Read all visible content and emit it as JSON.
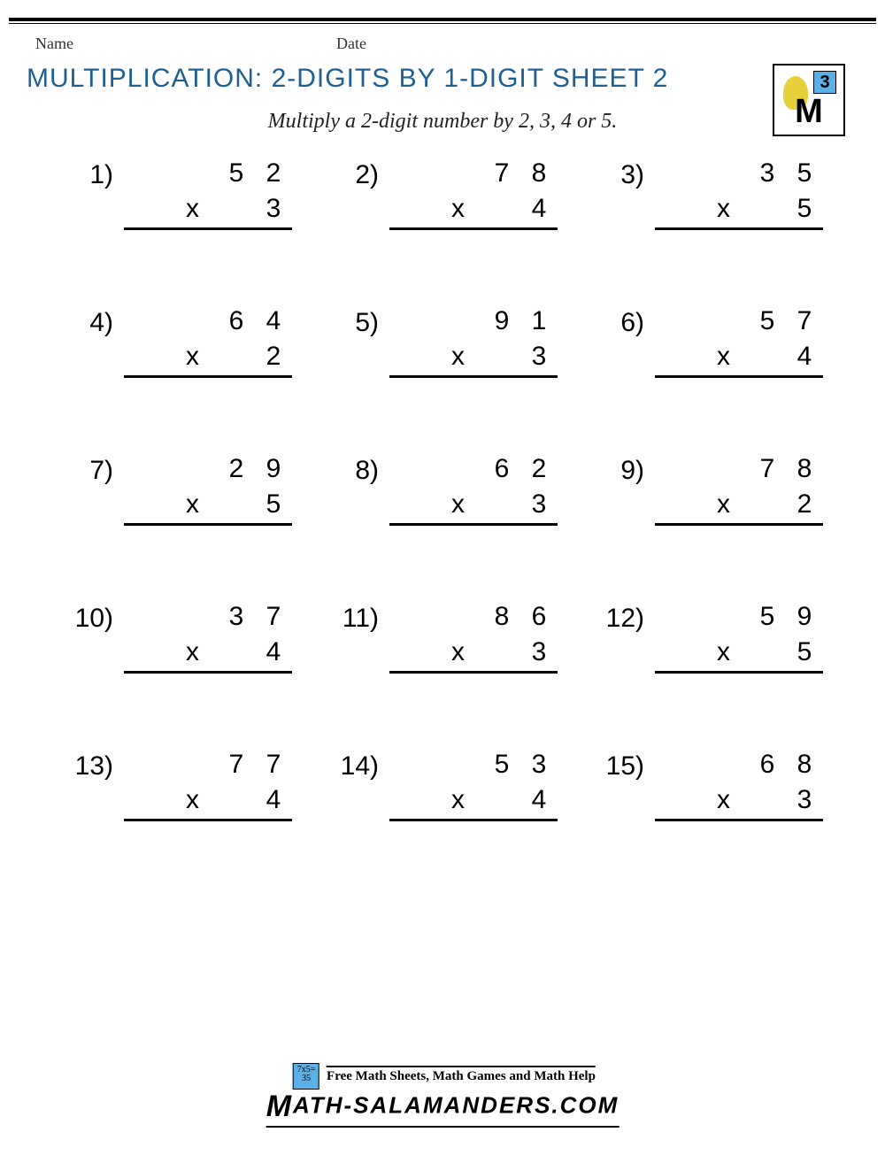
{
  "header": {
    "name_label": "Name",
    "date_label": "Date",
    "badge_grade": "3"
  },
  "title": "MULTIPLICATION: 2-DIGITS BY 1-DIGIT SHEET 2",
  "instruction": "Multiply a 2-digit number by 2, 3, 4 or 5.",
  "multiply_symbol": "x",
  "problems": [
    {
      "n": "1)",
      "d1": "5",
      "d2": "2",
      "m": "3"
    },
    {
      "n": "2)",
      "d1": "7",
      "d2": "8",
      "m": "4"
    },
    {
      "n": "3)",
      "d1": "3",
      "d2": "5",
      "m": "5"
    },
    {
      "n": "4)",
      "d1": "6",
      "d2": "4",
      "m": "2"
    },
    {
      "n": "5)",
      "d1": "9",
      "d2": "1",
      "m": "3"
    },
    {
      "n": "6)",
      "d1": "5",
      "d2": "7",
      "m": "4"
    },
    {
      "n": "7)",
      "d1": "2",
      "d2": "9",
      "m": "5"
    },
    {
      "n": "8)",
      "d1": "6",
      "d2": "2",
      "m": "3"
    },
    {
      "n": "9)",
      "d1": "7",
      "d2": "8",
      "m": "2"
    },
    {
      "n": "10)",
      "d1": "3",
      "d2": "7",
      "m": "4"
    },
    {
      "n": "11)",
      "d1": "8",
      "d2": "6",
      "m": "3"
    },
    {
      "n": "12)",
      "d1": "5",
      "d2": "9",
      "m": "5"
    },
    {
      "n": "13)",
      "d1": "7",
      "d2": "7",
      "m": "4"
    },
    {
      "n": "14)",
      "d1": "5",
      "d2": "3",
      "m": "4"
    },
    {
      "n": "15)",
      "d1": "6",
      "d2": "8",
      "m": "3"
    }
  ],
  "footer": {
    "tagline": "Free Math Sheets, Math Games and Math Help",
    "site": "ATH-SALAMANDERS.COM"
  },
  "colors": {
    "title_color": "#206090",
    "badge_blue": "#5bb0e8",
    "text": "#000000",
    "background": "#ffffff"
  },
  "layout": {
    "columns": 3,
    "rows": 5,
    "problem_font_size": 30,
    "title_font_size": 30,
    "instruction_font_size": 24
  }
}
